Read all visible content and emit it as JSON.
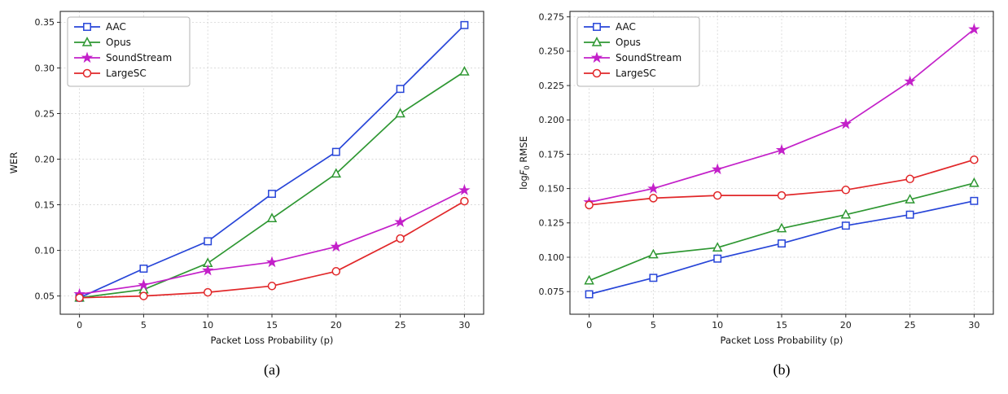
{
  "page": {
    "background": "#ffffff"
  },
  "chart_data": [
    {
      "type": "line",
      "caption": "(a)",
      "xlabel": "Packet Loss Probability (p)",
      "ylabel": "WER",
      "ylabel_parts": [
        {
          "text": "WER"
        }
      ],
      "x": [
        0,
        5,
        10,
        15,
        20,
        25,
        30
      ],
      "xlim": [
        -1.5,
        31.5
      ],
      "ylim": [
        0.03,
        0.362
      ],
      "xticks": [
        0,
        5,
        10,
        15,
        20,
        25,
        30
      ],
      "xtick_labels": [
        "0",
        "5",
        "10",
        "15",
        "20",
        "25",
        "30"
      ],
      "yticks": [
        0.05,
        0.1,
        0.15,
        0.2,
        0.25,
        0.3,
        0.35
      ],
      "ytick_labels": [
        "0.05",
        "0.10",
        "0.15",
        "0.20",
        "0.25",
        "0.30",
        "0.35"
      ],
      "grid": true,
      "legend_position": "upper-left",
      "series": [
        {
          "name": "AAC",
          "color": "#2745d8",
          "marker": "square",
          "values": [
            0.048,
            0.08,
            0.11,
            0.162,
            0.208,
            0.277,
            0.347
          ]
        },
        {
          "name": "Opus",
          "color": "#2e9732",
          "marker": "triangle",
          "values": [
            0.048,
            0.057,
            0.086,
            0.135,
            0.184,
            0.25,
            0.296
          ]
        },
        {
          "name": "SoundStream",
          "color": "#c320c9",
          "marker": "star",
          "values": [
            0.052,
            0.062,
            0.078,
            0.087,
            0.104,
            0.131,
            0.166
          ]
        },
        {
          "name": "LargeSC",
          "color": "#e12729",
          "marker": "circle",
          "values": [
            0.048,
            0.05,
            0.054,
            0.061,
            0.077,
            0.113,
            0.154
          ]
        }
      ]
    },
    {
      "type": "line",
      "caption": "(b)",
      "xlabel": "Packet Loss Probability (p)",
      "ylabel": "logF0 RMSE",
      "ylabel_parts": [
        {
          "text": "log"
        },
        {
          "text": "F",
          "italic": true
        },
        {
          "text": "0",
          "sub": true
        },
        {
          "text": " RMSE"
        }
      ],
      "x": [
        0,
        5,
        10,
        15,
        20,
        25,
        30
      ],
      "xlim": [
        -1.5,
        31.5
      ],
      "ylim": [
        0.0585,
        0.279
      ],
      "xticks": [
        0,
        5,
        10,
        15,
        20,
        25,
        30
      ],
      "xtick_labels": [
        "0",
        "5",
        "10",
        "15",
        "20",
        "25",
        "30"
      ],
      "yticks": [
        0.075,
        0.1,
        0.125,
        0.15,
        0.175,
        0.2,
        0.225,
        0.25,
        0.275
      ],
      "ytick_labels": [
        "0.075",
        "0.100",
        "0.125",
        "0.150",
        "0.175",
        "0.200",
        "0.225",
        "0.250",
        "0.275"
      ],
      "grid": true,
      "legend_position": "upper-left",
      "series": [
        {
          "name": "AAC",
          "color": "#2745d8",
          "marker": "square",
          "values": [
            0.073,
            0.085,
            0.099,
            0.11,
            0.123,
            0.131,
            0.141
          ]
        },
        {
          "name": "Opus",
          "color": "#2e9732",
          "marker": "triangle",
          "values": [
            0.083,
            0.102,
            0.107,
            0.121,
            0.131,
            0.142,
            0.154
          ]
        },
        {
          "name": "SoundStream",
          "color": "#c320c9",
          "marker": "star",
          "values": [
            0.14,
            0.15,
            0.164,
            0.178,
            0.197,
            0.228,
            0.266
          ]
        },
        {
          "name": "LargeSC",
          "color": "#e12729",
          "marker": "circle",
          "values": [
            0.138,
            0.143,
            0.145,
            0.145,
            0.149,
            0.157,
            0.171
          ]
        }
      ]
    }
  ]
}
